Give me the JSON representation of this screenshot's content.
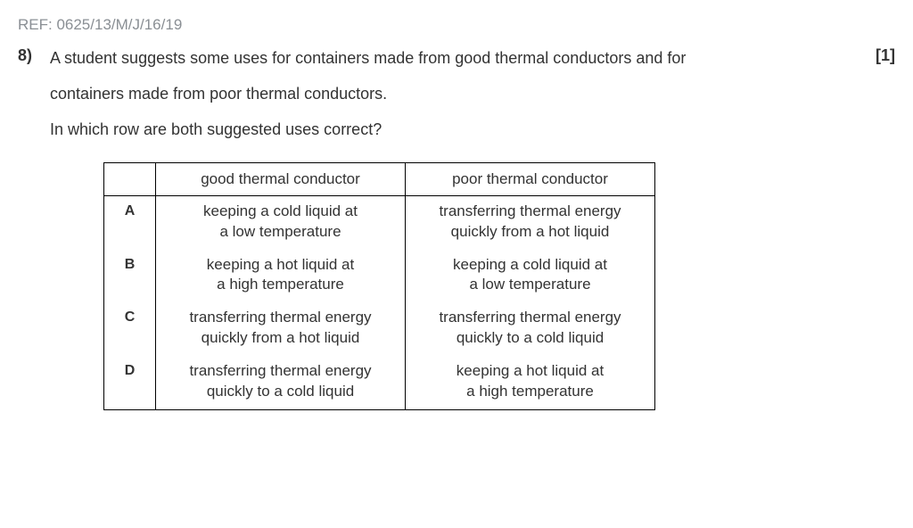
{
  "reference": "REF: 0625/13/M/J/16/19",
  "question_number": "8)",
  "marks": "[1]",
  "paragraphs": {
    "p1": "A student suggests some uses for containers made from good thermal conductors and for",
    "p2": "containers made from poor thermal conductors.",
    "p3": "In which row are both suggested uses correct?"
  },
  "table": {
    "headers": {
      "col1": "good thermal conductor",
      "col2": "poor thermal conductor"
    },
    "rows": {
      "A": {
        "label": "A",
        "col1_l1": "keeping a cold liquid at",
        "col1_l2": "a low temperature",
        "col2_l1": "transferring thermal energy",
        "col2_l2": "quickly from a hot liquid"
      },
      "B": {
        "label": "B",
        "col1_l1": "keeping a hot liquid at",
        "col1_l2": "a high temperature",
        "col2_l1": "keeping a cold liquid at",
        "col2_l2": "a low temperature"
      },
      "C": {
        "label": "C",
        "col1_l1": "transferring thermal energy",
        "col1_l2": "quickly from a hot liquid",
        "col2_l1": "transferring thermal energy",
        "col2_l2": "quickly to a cold liquid"
      },
      "D": {
        "label": "D",
        "col1_l1": "transferring thermal energy",
        "col1_l2": "quickly to a cold liquid",
        "col2_l1": "keeping a hot liquid at",
        "col2_l2": "a high temperature"
      }
    }
  },
  "colors": {
    "ref_text": "#8a8f94",
    "body_text": "#333333",
    "border": "#000000",
    "background": "#ffffff"
  },
  "typography": {
    "body_font": "Segoe UI / Arial",
    "table_font": "Arial",
    "body_size_pt": 14,
    "table_size_pt": 13
  }
}
